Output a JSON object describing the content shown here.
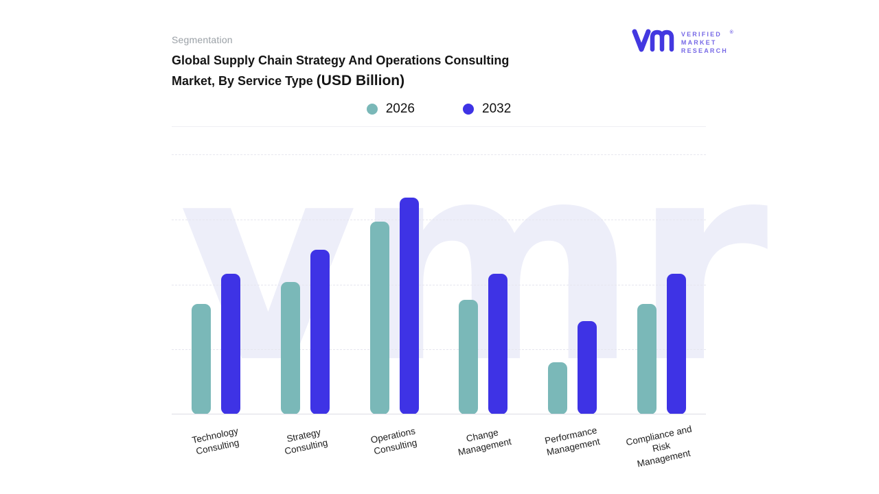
{
  "header": {
    "eyebrow": "Segmentation",
    "title_line1": "Global Supply Chain Strategy And Operations Consulting",
    "title_line2": "Market, By Service Type ",
    "title_unit": "(USD Billion)"
  },
  "logo": {
    "line1": "VERIFIED",
    "line2": "MARKET",
    "line3": "RESEARCH",
    "registered": "®",
    "color": "#4338e0",
    "text_color": "#7668e6"
  },
  "legend": [
    {
      "label": "2026",
      "color": "#7ab8b8"
    },
    {
      "label": "2032",
      "color": "#3e33e5"
    }
  ],
  "watermark": "vmr",
  "chart_data": {
    "type": "bar",
    "title": "Global Supply Chain Strategy And Operations Consulting Market, By Service Type (USD Billion)",
    "xlabel": "",
    "ylabel": "",
    "ylim": [
      0,
      12
    ],
    "grid": "dashed-horizontal",
    "legend_position": "top-center",
    "categories": [
      "Technology\nConsulting",
      "Strategy\nConsulting",
      "Operations\nConsulting",
      "Change\nManagement",
      "Performance\nManagement",
      "Compliance and\nRisk\nManagement"
    ],
    "series": [
      {
        "name": "2026",
        "color": "#7ab8b8",
        "values": [
          5.1,
          6.1,
          8.9,
          5.3,
          2.4,
          5.1
        ]
      },
      {
        "name": "2032",
        "color": "#3e33e5",
        "values": [
          6.5,
          7.6,
          10.0,
          6.5,
          4.3,
          6.5
        ]
      }
    ]
  }
}
